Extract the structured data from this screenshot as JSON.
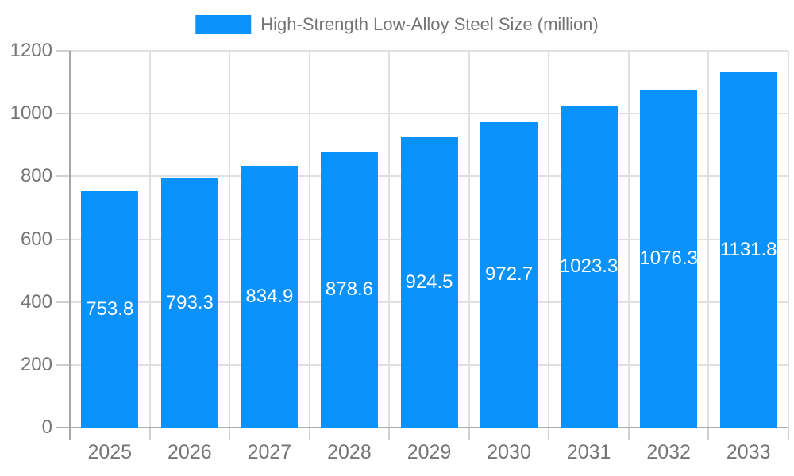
{
  "legend": {
    "label": "High-Strength Low-Alloy Steel Size (million)"
  },
  "colors": {
    "bar": "#0a91fa",
    "axis_text": "#757575",
    "value_label_text": "#ffffff",
    "gridline": "#e0e0e0",
    "tick": "#cfcfcf",
    "axis_line_y": "#a6a6a6",
    "axis_line_x": "#adadad",
    "background": "#ffffff"
  },
  "chart_data": {
    "type": "bar",
    "title": "High-Strength Low-Alloy Steel Size (million)",
    "series_name": "High-Strength Low-Alloy Steel Size (million)",
    "categories": [
      "2025",
      "2026",
      "2027",
      "2028",
      "2029",
      "2030",
      "2031",
      "2032",
      "2033"
    ],
    "values": [
      753.8,
      793.3,
      834.9,
      878.6,
      924.5,
      972.7,
      1023.3,
      1076.3,
      1131.8
    ],
    "value_labels": [
      "753.8",
      "793.3",
      "834.9",
      "878.6",
      "924.5",
      "972.7",
      "1023.3",
      "1076.3",
      "1131.8"
    ],
    "xlabel": "",
    "ylabel": "",
    "ylim": [
      0,
      1200
    ],
    "yticks": [
      0,
      200,
      400,
      600,
      800,
      1000,
      1200
    ],
    "ytick_labels": [
      "0",
      "200",
      "400",
      "600",
      "800",
      "1000",
      "1200"
    ],
    "grid": true,
    "legend_position": "top",
    "value_label_position": "inside-middle"
  }
}
